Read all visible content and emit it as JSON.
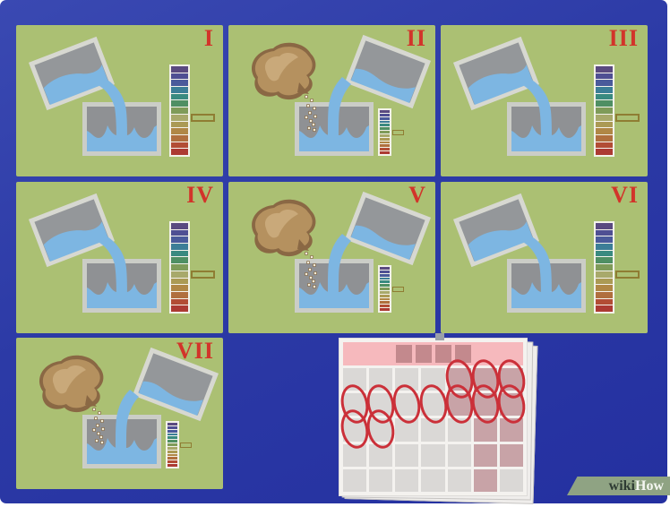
{
  "panels": [
    {
      "numeral": "I",
      "scene": "pour-water-into-basin-with-ph-scale"
    },
    {
      "numeral": "II",
      "scene": "pour-water-and-powder-bag-into-basin-with-ph-strip"
    },
    {
      "numeral": "III",
      "scene": "pour-water-into-basin-with-ph-scale"
    },
    {
      "numeral": "IV",
      "scene": "pour-water-into-basin-with-ph-scale"
    },
    {
      "numeral": "V",
      "scene": "pour-water-and-powder-bag-into-basin-with-ph-strip"
    },
    {
      "numeral": "VI",
      "scene": "pour-water-into-basin-with-ph-scale"
    },
    {
      "numeral": "VII",
      "scene": "pour-water-and-powder-bag-into-basin-with-ph-strip"
    }
  ],
  "ph_scale": {
    "levels": 13,
    "pointer_level": 8,
    "colors": [
      "#5a4a80",
      "#4f4f93",
      "#4a5a9b",
      "#3c7e97",
      "#398a80",
      "#4f8f63",
      "#7f9b59",
      "#a8a96b",
      "#ab9a55",
      "#b08746",
      "#b06f3e",
      "#b24d35",
      "#ac3a33"
    ],
    "pointer_color": "#8f7d33"
  },
  "calendar": {
    "columns": 7,
    "rows": 5,
    "header_squares": 4,
    "circled_cells": [
      [
        0,
        4
      ],
      [
        0,
        5
      ],
      [
        0,
        6
      ],
      [
        1,
        0
      ],
      [
        1,
        1
      ],
      [
        1,
        2
      ],
      [
        1,
        3
      ],
      [
        1,
        4
      ],
      [
        1,
        5
      ],
      [
        1,
        6
      ],
      [
        2,
        0
      ],
      [
        2,
        1
      ]
    ],
    "shaded_cells": [
      [
        0,
        4
      ],
      [
        0,
        5
      ],
      [
        0,
        6
      ],
      [
        1,
        4
      ],
      [
        1,
        5
      ],
      [
        1,
        6
      ],
      [
        2,
        5
      ],
      [
        2,
        6
      ],
      [
        3,
        5
      ],
      [
        3,
        6
      ],
      [
        4,
        5
      ]
    ],
    "colors": {
      "body": "#f4f2ef",
      "header": "#f6b9bd",
      "header_square": "#c3898d",
      "cell": "#dad8d6",
      "shaded_cell": "#c8a3a7",
      "circle": "#cb3039"
    }
  },
  "watermark": {
    "wiki": "wiki",
    "how": "How"
  },
  "palette": {
    "background_blue": "#2c3aa6",
    "panel_green": "#abc073",
    "pitcher_gray": "#94979a",
    "container_rim": "#d7d8d1",
    "water_blue": "#7db6e2",
    "bag_brown": "#b5915f",
    "bag_shadow": "#8a6844",
    "bag_highlight": "#c9a97a",
    "numeral_red": "#d2342a",
    "watermark_green": "#8fa383"
  }
}
